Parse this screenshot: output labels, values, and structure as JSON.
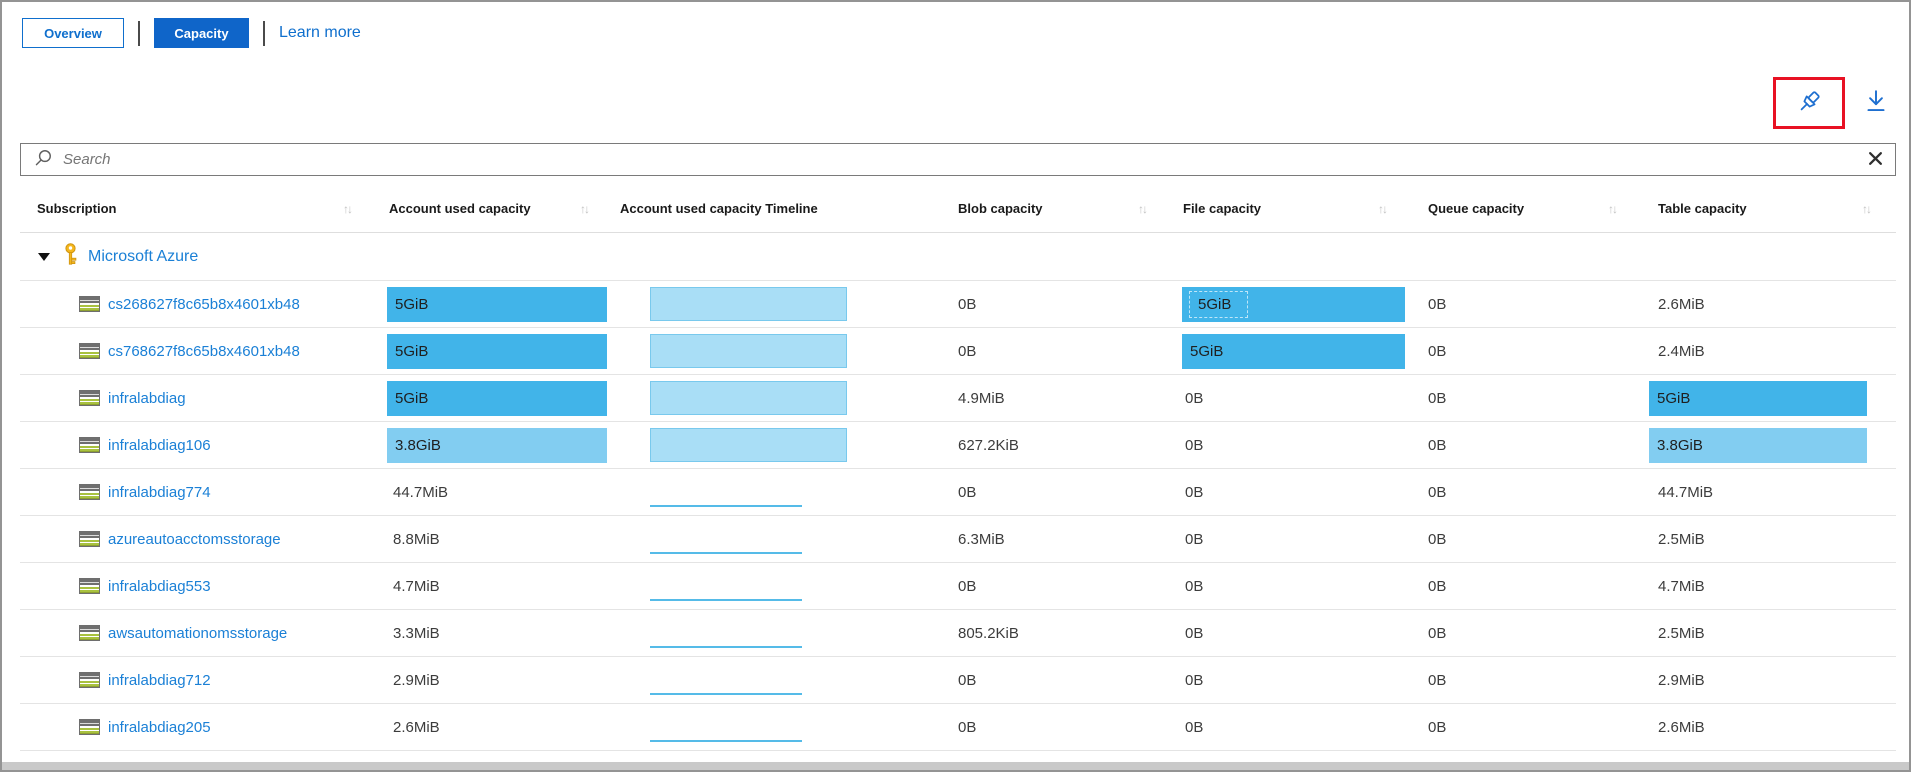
{
  "tabs": {
    "overview_label": "Overview",
    "capacity_label": "Capacity",
    "learn_more_label": "Learn more"
  },
  "toolbar": {
    "pin_icon": "pin-icon",
    "download_icon": "download-icon",
    "pin_highlight_color": "#e81123"
  },
  "search": {
    "placeholder": "Search",
    "search_icon": "search-icon",
    "clear_icon": "close-icon"
  },
  "colors": {
    "accent_blue": "#0f65c9",
    "link_blue": "#1b80d6",
    "bar_strong": "#41b4e9",
    "bar_light": "#82cdf1",
    "timeline_fill": "#a9def6",
    "key_gold": "#f5b71d"
  },
  "table": {
    "sort_icon": "↑↓",
    "columns": [
      {
        "label": "Subscription",
        "sortable": true
      },
      {
        "label": "Account used capacity",
        "sortable": true
      },
      {
        "label": "Account used capacity Timeline",
        "sortable": false
      },
      {
        "label": "Blob capacity",
        "sortable": true
      },
      {
        "label": "File capacity",
        "sortable": true
      },
      {
        "label": "Queue capacity",
        "sortable": true
      },
      {
        "label": "Table capacity",
        "sortable": true
      }
    ],
    "group": {
      "label": "Microsoft Azure",
      "expanded": true
    },
    "rows": [
      {
        "name": "cs268627f8c65b8x4601xb48",
        "account_used": "5GiB",
        "account_bar": "strong",
        "timeline": "filled",
        "blob": "0B",
        "file": "5GiB",
        "file_bar": "strong",
        "file_focus": true,
        "queue": "0B",
        "table": "2.6MiB",
        "table_bar": null
      },
      {
        "name": "cs768627f8c65b8x4601xb48",
        "account_used": "5GiB",
        "account_bar": "strong",
        "timeline": "filled",
        "blob": "0B",
        "file": "5GiB",
        "file_bar": "strong",
        "file_focus": false,
        "queue": "0B",
        "table": "2.4MiB",
        "table_bar": null
      },
      {
        "name": "infralabdiag",
        "account_used": "5GiB",
        "account_bar": "strong",
        "timeline": "filled",
        "blob": "4.9MiB",
        "file": "0B",
        "file_bar": null,
        "file_focus": false,
        "queue": "0B",
        "table": "5GiB",
        "table_bar": "strong"
      },
      {
        "name": "infralabdiag106",
        "account_used": "3.8GiB",
        "account_bar": "light",
        "timeline": "filled",
        "blob": "627.2KiB",
        "file": "0B",
        "file_bar": null,
        "file_focus": false,
        "queue": "0B",
        "table": "3.8GiB",
        "table_bar": "light"
      },
      {
        "name": "infralabdiag774",
        "account_used": "44.7MiB",
        "account_bar": null,
        "timeline": "line",
        "blob": "0B",
        "file": "0B",
        "file_bar": null,
        "file_focus": false,
        "queue": "0B",
        "table": "44.7MiB",
        "table_bar": null
      },
      {
        "name": "azureautoacctomsstorage",
        "account_used": "8.8MiB",
        "account_bar": null,
        "timeline": "line",
        "blob": "6.3MiB",
        "file": "0B",
        "file_bar": null,
        "file_focus": false,
        "queue": "0B",
        "table": "2.5MiB",
        "table_bar": null
      },
      {
        "name": "infralabdiag553",
        "account_used": "4.7MiB",
        "account_bar": null,
        "timeline": "line",
        "blob": "0B",
        "file": "0B",
        "file_bar": null,
        "file_focus": false,
        "queue": "0B",
        "table": "4.7MiB",
        "table_bar": null
      },
      {
        "name": "awsautomationomsstorage",
        "account_used": "3.3MiB",
        "account_bar": null,
        "timeline": "line",
        "blob": "805.2KiB",
        "file": "0B",
        "file_bar": null,
        "file_focus": false,
        "queue": "0B",
        "table": "2.5MiB",
        "table_bar": null
      },
      {
        "name": "infralabdiag712",
        "account_used": "2.9MiB",
        "account_bar": null,
        "timeline": "line",
        "blob": "0B",
        "file": "0B",
        "file_bar": null,
        "file_focus": false,
        "queue": "0B",
        "table": "2.9MiB",
        "table_bar": null
      },
      {
        "name": "infralabdiag205",
        "account_used": "2.6MiB",
        "account_bar": null,
        "timeline": "line",
        "blob": "0B",
        "file": "0B",
        "file_bar": null,
        "file_focus": false,
        "queue": "0B",
        "table": "2.6MiB",
        "table_bar": null
      }
    ]
  }
}
